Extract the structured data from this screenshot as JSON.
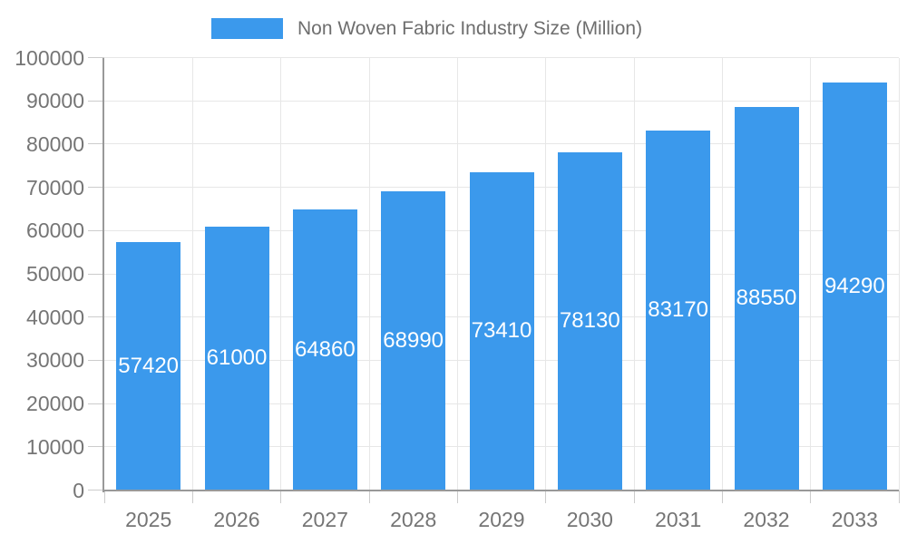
{
  "chart_data": {
    "type": "bar",
    "title": "Non Woven Fabric Industry Size (Million)",
    "categories": [
      "2025",
      "2026",
      "2027",
      "2028",
      "2029",
      "2030",
      "2031",
      "2032",
      "2033"
    ],
    "series": [
      {
        "name": "Non Woven Fabric Industry Size (Million)",
        "values": [
          57420,
          61000,
          64860,
          68990,
          73410,
          78130,
          83170,
          88550,
          94290
        ]
      }
    ],
    "bar_labels": [
      "57420",
      "61000",
      "64860",
      "68990",
      "73410",
      "78130",
      "83170",
      "88550",
      "94290"
    ],
    "xlabel": "",
    "ylabel": "",
    "ylim": [
      0,
      100000
    ],
    "ytick_step": 10000,
    "yticks": [
      "0",
      "10000",
      "20000",
      "30000",
      "40000",
      "50000",
      "60000",
      "70000",
      "80000",
      "90000",
      "100000"
    ],
    "grid": true,
    "legend_position": "top-center",
    "colors": {
      "bar": "#3b99ec",
      "bar_value_label": "#ffffff",
      "gridline": "#e7e7e7",
      "tick": "#cccccc",
      "axis_line": "#999999",
      "axis_label": "#757575",
      "legend_text": "#6e6e6e",
      "background": "#ffffff"
    }
  }
}
